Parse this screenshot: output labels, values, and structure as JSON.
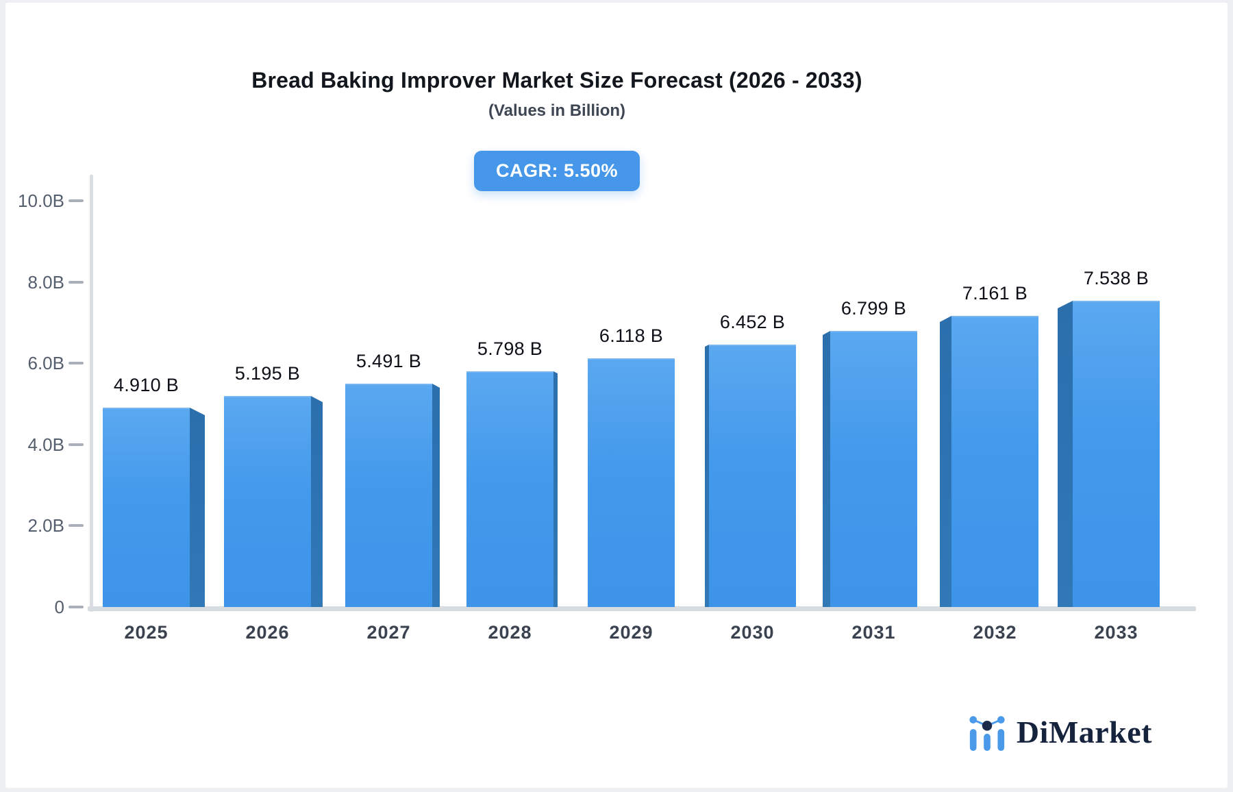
{
  "header": {
    "title": "Bread Baking Improver Market Size Forecast (2026 - 2033)",
    "subtitle": "(Values in Billion)",
    "cagr_badge": "CAGR: 5.50%"
  },
  "chart_data": {
    "type": "bar",
    "title": "Bread Baking Improver Market Size Forecast (2026 - 2033)",
    "subtitle": "(Values in Billion)",
    "cagr": "5.50%",
    "unit": "Billion",
    "categories": [
      "2025",
      "2026",
      "2027",
      "2028",
      "2029",
      "2030",
      "2031",
      "2032",
      "2033"
    ],
    "values": [
      4.91,
      5.195,
      5.491,
      5.798,
      6.118,
      6.452,
      6.799,
      7.161,
      7.538
    ],
    "value_labels": [
      "4.910 B",
      "5.195 B",
      "5.491 B",
      "5.798 B",
      "6.118 B",
      "6.452 B",
      "6.799 B",
      "7.161 B",
      "7.538 B"
    ],
    "xlabel": "",
    "ylabel": "",
    "ylim": [
      0,
      10
    ],
    "yticks": [
      {
        "value": 10,
        "label": "10.0B"
      },
      {
        "value": 8,
        "label": "8.0B"
      },
      {
        "value": 6,
        "label": "6.0B"
      },
      {
        "value": 4,
        "label": "4.0B"
      },
      {
        "value": 2,
        "label": "2.0B"
      },
      {
        "value": 0,
        "label": "0"
      }
    ],
    "grid": false,
    "legend": false,
    "bar_color": "#4399EB",
    "bar_side_color": "#2E74B2",
    "style": "3d-central-perspective"
  },
  "branding": {
    "logo_text": "DiMarket",
    "logo_icon": "mini-bar-chart-icon",
    "logo_accent_color": "#4A9AE9",
    "logo_text_color": "#16233D"
  }
}
